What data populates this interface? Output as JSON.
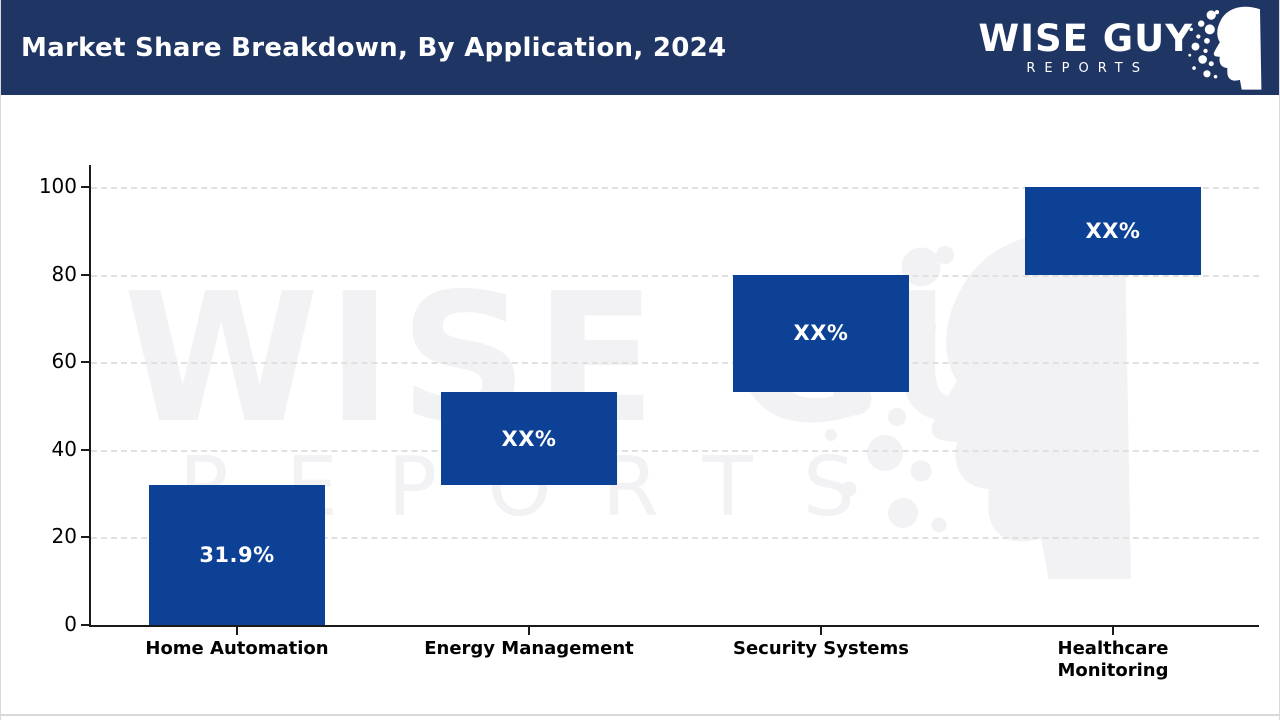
{
  "header": {
    "title": "Market Share Breakdown, By Application, 2024",
    "logo": {
      "line1": "WISE GUY",
      "line2": "REPORTS"
    }
  },
  "watermark": {
    "line1": "WISE GU",
    "line2": "REPORTS"
  },
  "chart_data": {
    "type": "bar",
    "subtype": "waterfall",
    "title": "Market Share Breakdown, By Application, 2024",
    "categories": [
      "Home Automation",
      "Energy Management",
      "Security Systems",
      "Healthcare Monitoring"
    ],
    "bars": [
      {
        "category": "Home Automation",
        "start": 0,
        "end": 31.9,
        "label": "31.9%"
      },
      {
        "category": "Energy Management",
        "start": 31.9,
        "end": 53.2,
        "label": "XX%"
      },
      {
        "category": "Security Systems",
        "start": 53.2,
        "end": 80.0,
        "label": "XX%"
      },
      {
        "category": "Healthcare Monitoring",
        "start": 80.0,
        "end": 100.0,
        "label": "XX%"
      }
    ],
    "yticks": [
      0,
      20,
      40,
      60,
      80,
      100
    ],
    "ylim": [
      0,
      105
    ],
    "grid": "dashed-horizontal",
    "legend": "none",
    "bar_color": "#0c4195",
    "bar_label_color": "#ffffff",
    "axis_color": "#1a1a1a"
  }
}
